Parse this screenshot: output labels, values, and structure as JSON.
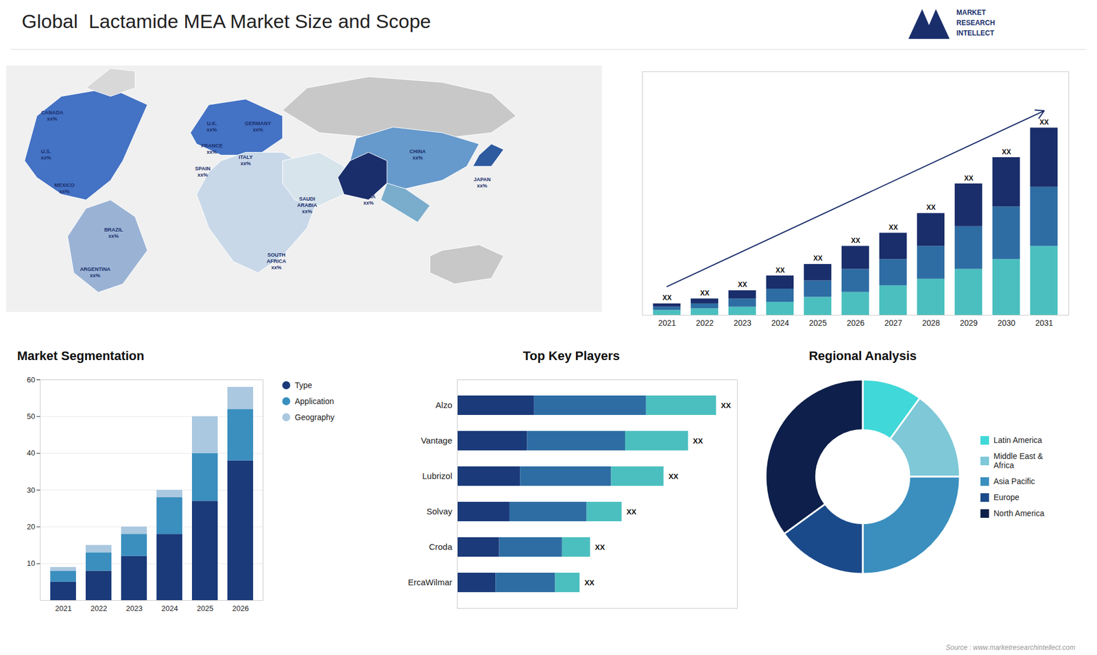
{
  "chart_data": [
    {
      "type": "bar",
      "title": "Global  Lactamide MEA Market Size and Scope",
      "categories": [
        "2021",
        "2022",
        "2023",
        "2024",
        "2025",
        "2026",
        "2027",
        "2028",
        "2029",
        "2030",
        "2031"
      ],
      "series": [
        {
          "color": "#4bbfbf",
          "values": [
            1.5,
            2,
            2.5,
            4,
            5.5,
            7,
            9,
            11,
            14,
            17,
            21
          ]
        },
        {
          "color": "#2e6da4",
          "values": [
            1,
            1.5,
            2.5,
            4,
            5,
            7,
            8,
            10,
            13,
            16,
            18
          ]
        },
        {
          "color": "#1a2e6b",
          "values": [
            1,
            1.5,
            2.5,
            4,
            5,
            7,
            8,
            10,
            13,
            15,
            18
          ]
        }
      ],
      "stacked": true,
      "ylim": [
        0,
        74.1
      ],
      "grid": false,
      "tick_labels": "x",
      "annotations": [
        {
          "text": "XX",
          "x": "2021"
        },
        {
          "text": "XX",
          "x": "2022"
        },
        {
          "text": "XX",
          "x": "2023"
        },
        {
          "text": "XX",
          "x": "2024"
        },
        {
          "text": "XX",
          "x": "2025"
        },
        {
          "text": "XX",
          "x": "2026"
        },
        {
          "text": "XX",
          "x": "2027"
        },
        {
          "text": "XX",
          "x": "2028"
        },
        {
          "text": "XX",
          "x": "2029"
        },
        {
          "text": "XX",
          "x": "2030"
        },
        {
          "text": "XX",
          "x": "2031"
        }
      ]
    },
    {
      "type": "map",
      "color": "#1a2e6b",
      "annotations": [
        "CANADA\nxx%",
        "U.S.\nxx%",
        "MEXICO\nxx%",
        "BRAZIL\nxx%",
        "ARGENTINA\nxx%",
        "U.K.\nxx%",
        "FRANCE\nxx%",
        "SPAIN\nxx%",
        "GERMANY\nxx%",
        "ITALY\nxx%",
        "SAUDI\nARABIA\nxx%",
        "SOUTH\nAFRICA\nxx%",
        "CHINA\nxx%",
        "JAPAN\nxx%",
        "INDIA\nxx%"
      ]
    },
    {
      "type": "bar",
      "title": "Market Segmentation",
      "categories": [
        "2021",
        "2022",
        "2023",
        "2024",
        "2025",
        "2026"
      ],
      "series": [
        {
          "name": "Type",
          "color": "#1a3a7a",
          "values": [
            5,
            8,
            12,
            18,
            27,
            38
          ]
        },
        {
          "name": "Application",
          "color": "#3a8fbf",
          "values": [
            3,
            5,
            6,
            10,
            13,
            14
          ]
        },
        {
          "name": "Geography",
          "color": "#aac8e0",
          "values": [
            1,
            2,
            2,
            2,
            10,
            6
          ]
        }
      ],
      "stacked": true,
      "ylim": [
        0,
        60
      ],
      "yticks": [
        10,
        20,
        30,
        40,
        50,
        60
      ],
      "grid": true,
      "legend": "right"
    },
    {
      "type": "bar",
      "title": "Top Key Players",
      "orientation": "horizontal",
      "stacked": true,
      "categories": [
        "Alzo",
        "Vantage",
        "Lubrizol",
        "Solvay",
        "Croda",
        "ErcaWilmar"
      ],
      "series": [
        {
          "color": "#1a3a7a",
          "values": [
            0.22,
            0.2,
            0.18,
            0.15,
            0.12,
            0.11
          ]
        },
        {
          "color": "#2e6da4",
          "values": [
            0.32,
            0.28,
            0.26,
            0.22,
            0.18,
            0.17
          ]
        },
        {
          "color": "#4bbfbf",
          "values": [
            0.2,
            0.18,
            0.15,
            0.1,
            0.08,
            0.07
          ]
        }
      ],
      "xlim": [
        0,
        0.8
      ],
      "tick_labels": "y",
      "annotations": [
        {
          "text": "XX",
          "y": "Alzo"
        },
        {
          "text": "XX",
          "y": "Vantage"
        },
        {
          "text": "XX",
          "y": "Lubrizol"
        },
        {
          "text": "XX",
          "y": "Solvay"
        },
        {
          "text": "XX",
          "y": "Croda"
        },
        {
          "text": "XX",
          "y": "ErcaWilmar"
        }
      ]
    },
    {
      "type": "pie",
      "title": "Regional Analysis",
      "categories": [
        "Latin America",
        "Middle East &\nAfrica",
        "Asia Pacific",
        "Europe",
        "North America"
      ],
      "values": [
        10,
        15,
        25,
        15,
        35
      ],
      "colors": [
        "#40d8d8",
        "#7ec8d8",
        "#3a8fbf",
        "#1a4a8a",
        "#0d1f4a"
      ],
      "legend": "right"
    },
    {
      "type": "logo",
      "color": "#1a2e6b",
      "annotations": [
        "MARKET",
        "RESEARCH",
        "INTELLECT"
      ]
    },
    {
      "type": "note",
      "annotations": [
        "Source : www.marketresearchintellect.com"
      ]
    }
  ]
}
